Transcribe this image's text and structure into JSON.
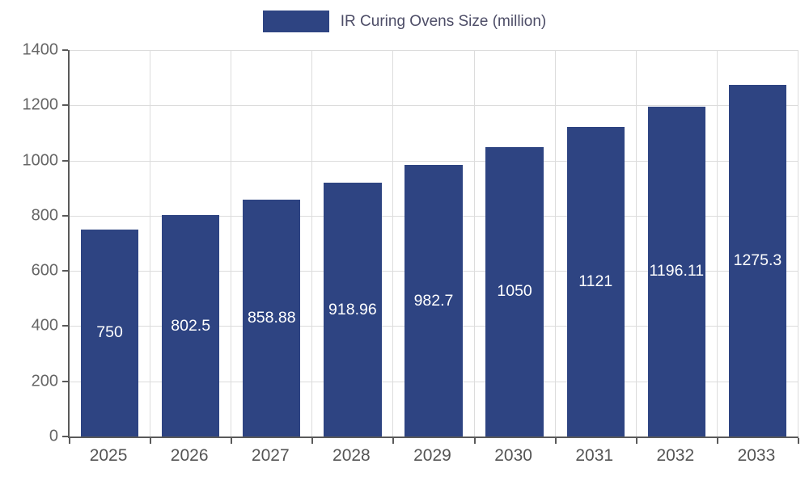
{
  "chart_data": {
    "type": "bar",
    "title": "IR Curing Ovens Size (million)",
    "categories": [
      "2025",
      "2026",
      "2027",
      "2028",
      "2029",
      "2030",
      "2031",
      "2032",
      "2033"
    ],
    "values": [
      750,
      802.5,
      858.88,
      918.96,
      982.7,
      1050,
      1121,
      1196.11,
      1275.3
    ],
    "value_labels": [
      "750",
      "802.5",
      "858.88",
      "918.96",
      "982.7",
      "1050",
      "1121",
      "1196.11",
      "1275.3"
    ],
    "xlabel": "",
    "ylabel": "",
    "ylim": [
      0,
      1400
    ],
    "yticks": [
      0,
      200,
      400,
      600,
      800,
      1000,
      1200,
      1400
    ],
    "grid": true,
    "legend_position": "top",
    "bar_color": "#2e4482",
    "bar_label_color": "#ffffff",
    "axis_color": "#5a5a5a",
    "grid_color": "#dcdcdc",
    "tick_label_color": "#666666",
    "legend_text_color": "#4d4d67"
  }
}
